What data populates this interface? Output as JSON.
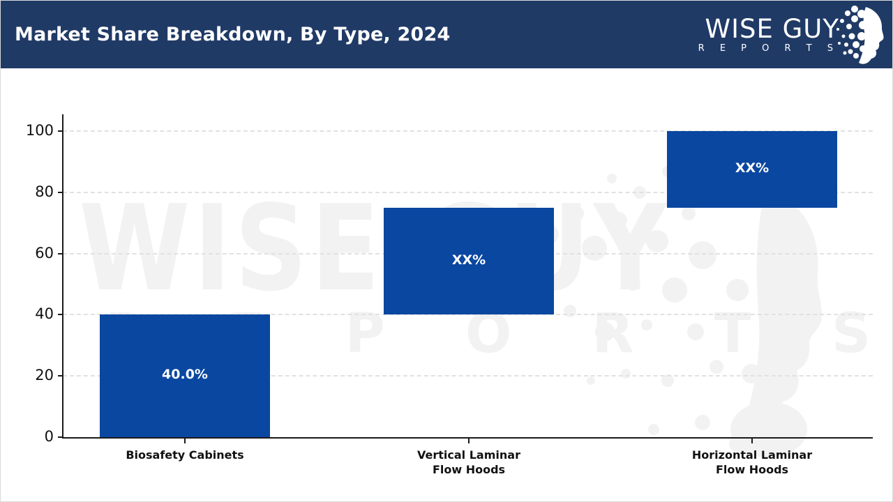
{
  "header": {
    "title": "Market Share Breakdown, By Type, 2024",
    "logo": {
      "wordmark": "WISE GUY",
      "subtitle": "R E P O R T S"
    }
  },
  "watermark": {
    "wordmark": "WISE GUY",
    "subtitle": "R E P O R T S"
  },
  "chart_data": {
    "type": "bar",
    "variant": "waterfall",
    "title": "Market Share Breakdown, By Type, 2024",
    "categories": [
      "Biosafety Cabinets",
      "Vertical Laminar\nFlow Hoods",
      "Horizontal Laminar\nFlow Hoods"
    ],
    "bars": [
      {
        "category": "Biosafety Cabinets",
        "start": 0,
        "end": 40,
        "label": "40.0%"
      },
      {
        "category": "Vertical Laminar Flow Hoods",
        "start": 40,
        "end": 75,
        "label": "XX%"
      },
      {
        "category": "Horizontal Laminar Flow Hoods",
        "start": 75,
        "end": 100,
        "label": "XX%"
      }
    ],
    "xlabel": "",
    "ylabel": "",
    "ylim": [
      0,
      100
    ],
    "yticks": [
      0,
      20,
      40,
      60,
      80,
      100
    ],
    "grid": {
      "horizontal": true,
      "style": "dashed"
    },
    "legend": "none",
    "bar_color": "#0a47a0",
    "value_label_color": "#ffffff"
  },
  "colors": {
    "header_bg": "#203a66",
    "header_text": "#ffffff",
    "bar": "#0a47a0",
    "axis": "#1a1a1a",
    "grid": "#e1e1e1",
    "watermark": "#f2f2f2",
    "page_border": "#d9d9d9"
  }
}
